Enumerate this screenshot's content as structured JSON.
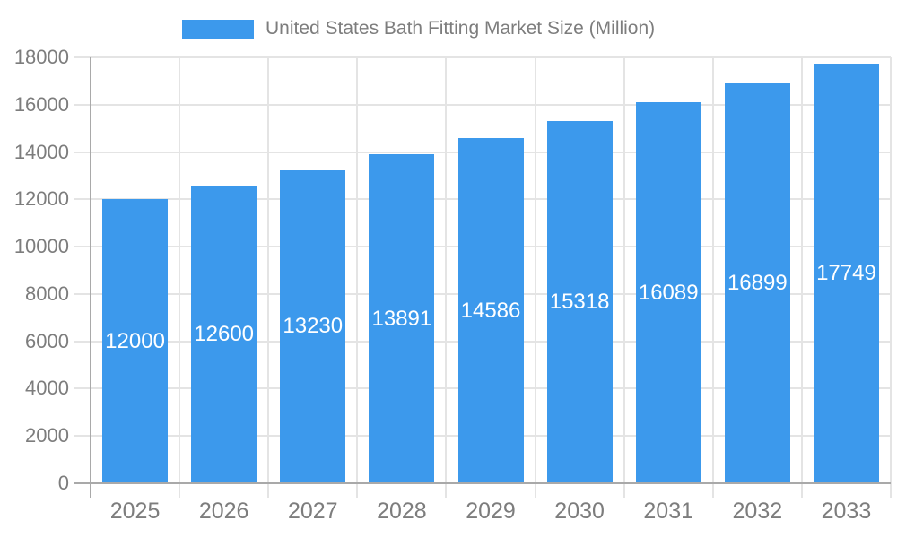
{
  "chart_data": {
    "type": "bar",
    "title": "United States Bath Fitting Market Size (Million)",
    "series_name": "United States Bath Fitting Market Size (Million)",
    "categories": [
      "2025",
      "2026",
      "2027",
      "2028",
      "2029",
      "2030",
      "2031",
      "2032",
      "2033"
    ],
    "values": [
      12000,
      12600,
      13230,
      13891,
      14586,
      15318,
      16089,
      16899,
      17749
    ],
    "value_labels": [
      "12000",
      "12600",
      "13230",
      "13891",
      "14586",
      "15318",
      "16089",
      "16899",
      "17749"
    ],
    "xlabel": "",
    "ylabel": "",
    "ylim": [
      0,
      18000
    ],
    "yticks": [
      0,
      2000,
      4000,
      6000,
      8000,
      10000,
      12000,
      14000,
      16000,
      18000
    ],
    "grid": true,
    "legend_position": "top",
    "value_label_position": "inside-center"
  },
  "colors": {
    "bar": "#3c99ec",
    "grid": "#e4e4e4",
    "axis": "#a9a9a9",
    "text": "#7d7d7d",
    "value_label": "#ffffff",
    "background": "#ffffff"
  }
}
